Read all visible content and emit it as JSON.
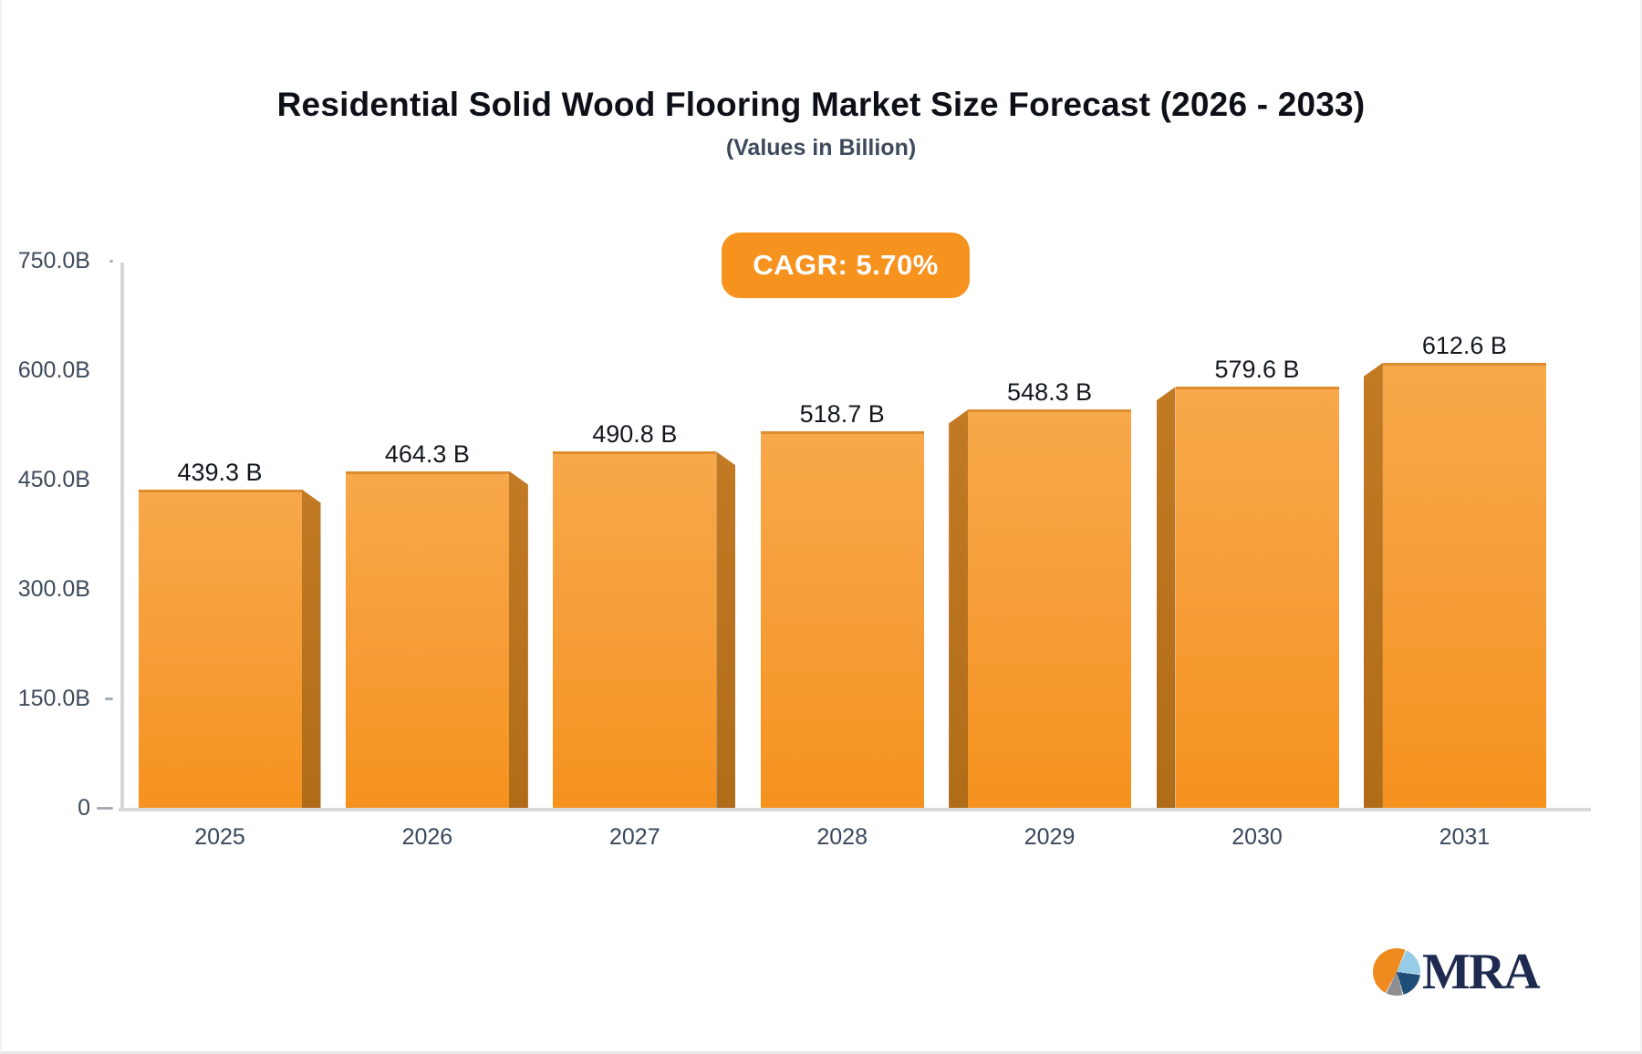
{
  "title": "Residential Solid Wood Flooring Market Size Forecast (2026 - 2033)",
  "subtitle": "(Values in Billion)",
  "cagr": {
    "label": "CAGR: 5.70%"
  },
  "logo": {
    "text": "MRA"
  },
  "colors": {
    "accent_orange": "#F6921E",
    "bar_face_top": "#F7A84A",
    "bar_face_bottom": "#F5921E",
    "bar_side": "#B76E17",
    "axis_line": "#D5D7DB",
    "tick_text": "#3E4A5C",
    "value_text": "#14181E",
    "title_text": "#0D1016",
    "logo_navy": "#1E2A4F",
    "pie_orange": "#EE8A1E",
    "pie_lightblue": "#96CCE8",
    "pie_navy": "#1F4E79",
    "pie_gray": "#8D8D92"
  },
  "chart_data": {
    "type": "bar",
    "title": "Residential Solid Wood Flooring Market Size Forecast (2026 - 2033)",
    "subtitle": "(Values in Billion)",
    "annotation": "CAGR: 5.70%",
    "categories": [
      "2025",
      "2026",
      "2027",
      "2028",
      "2029",
      "2030",
      "2031"
    ],
    "values": [
      439.3,
      464.3,
      490.8,
      518.7,
      548.3,
      579.6,
      612.6
    ],
    "value_labels": [
      "439.3 B",
      "464.3 B",
      "490.8 B",
      "518.7 B",
      "548.3 B",
      "579.6 B",
      "612.6 B"
    ],
    "xlabel": "",
    "ylabel": "",
    "ylim": [
      0,
      750
    ],
    "y_ticks": [
      {
        "label": "750.0B",
        "value": 750,
        "tick": "dot"
      },
      {
        "label": "600.0B",
        "value": 600,
        "tick": "none"
      },
      {
        "label": "450.0B",
        "value": 450,
        "tick": "none"
      },
      {
        "label": "300.0B",
        "value": 300,
        "tick": "none"
      },
      {
        "label": "150.0B",
        "value": 150,
        "tick": "dash"
      },
      {
        "label": "0",
        "value": 0,
        "tick": "long"
      }
    ],
    "grid": false,
    "legend": "none",
    "bar_style": "3d-perspective"
  }
}
